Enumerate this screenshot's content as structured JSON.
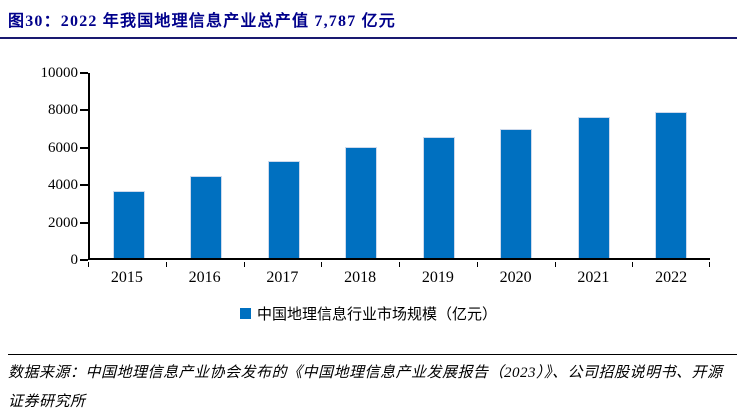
{
  "figure": {
    "title": "图30：2022 年我国地理信息产业总产值 7,787 亿元"
  },
  "chart_data": {
    "type": "bar",
    "categories": [
      "2015",
      "2016",
      "2017",
      "2018",
      "2019",
      "2020",
      "2021",
      "2022"
    ],
    "values": [
      3600,
      4360,
      5180,
      5957,
      6476,
      6890,
      7524,
      7787
    ],
    "ylim": [
      0,
      10000
    ],
    "yticks": [
      0,
      2000,
      4000,
      6000,
      8000,
      10000
    ],
    "legend": "中国地理信息行业市场规模（亿元）",
    "legend_position": "bottom",
    "grid": false,
    "bar_color": "#0070C0"
  },
  "footer": {
    "source": "数据来源：中国地理信息产业协会发布的《中国地理信息产业发展报告（2023）》、公司招股说明书、开源证券研究所"
  },
  "colors": {
    "title_navy": "#00008B",
    "rule_navy": "#191970",
    "bar_blue": "#0070C0",
    "axis_black": "#000000"
  }
}
